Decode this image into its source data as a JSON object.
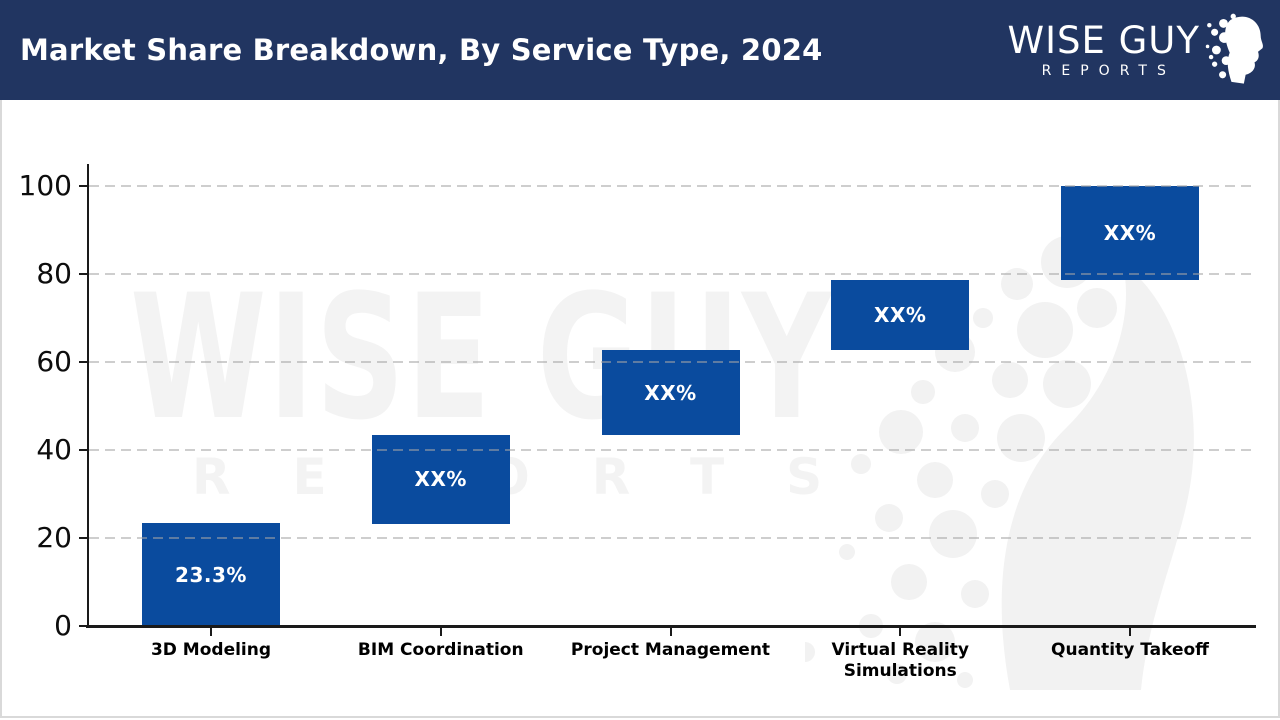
{
  "header": {
    "title": "Market Share Breakdown, By Service Type, 2024",
    "bg_color": "#213561",
    "logo": {
      "line1": "WISE GUY",
      "line2": "REPORTS"
    }
  },
  "watermark": {
    "line1": "WISE GUY",
    "line2": "REPORTS"
  },
  "chart_data": {
    "type": "bar",
    "subtype": "waterfall",
    "title": "Market Share Breakdown, By Service Type, 2024",
    "categories": [
      "3D Modeling",
      "BIM Coordination",
      "Project Management",
      "Virtual Reality Simulations",
      "Quantity Takeoff"
    ],
    "bars": [
      {
        "category": "3D Modeling",
        "start": 0,
        "end": 23.3,
        "label": "23.3%"
      },
      {
        "category": "BIM Coordination",
        "start": 23.2,
        "end": 43.4,
        "label": "XX%"
      },
      {
        "category": "Project Management",
        "start": 43.4,
        "end": 62.7,
        "label": "XX%"
      },
      {
        "category": "Virtual Reality Simulations",
        "start": 62.7,
        "end": 78.6,
        "label": "XX%"
      },
      {
        "category": "Quantity Takeoff",
        "start": 78.6,
        "end": 100,
        "label": "XX%"
      }
    ],
    "y_ticks": [
      0,
      20,
      40,
      60,
      80,
      100
    ],
    "ylim": [
      0,
      105
    ],
    "xlabel": "",
    "ylabel": "",
    "bar_color": "#0a4b9e",
    "grid": "horizontal dashed",
    "legend": "none"
  }
}
